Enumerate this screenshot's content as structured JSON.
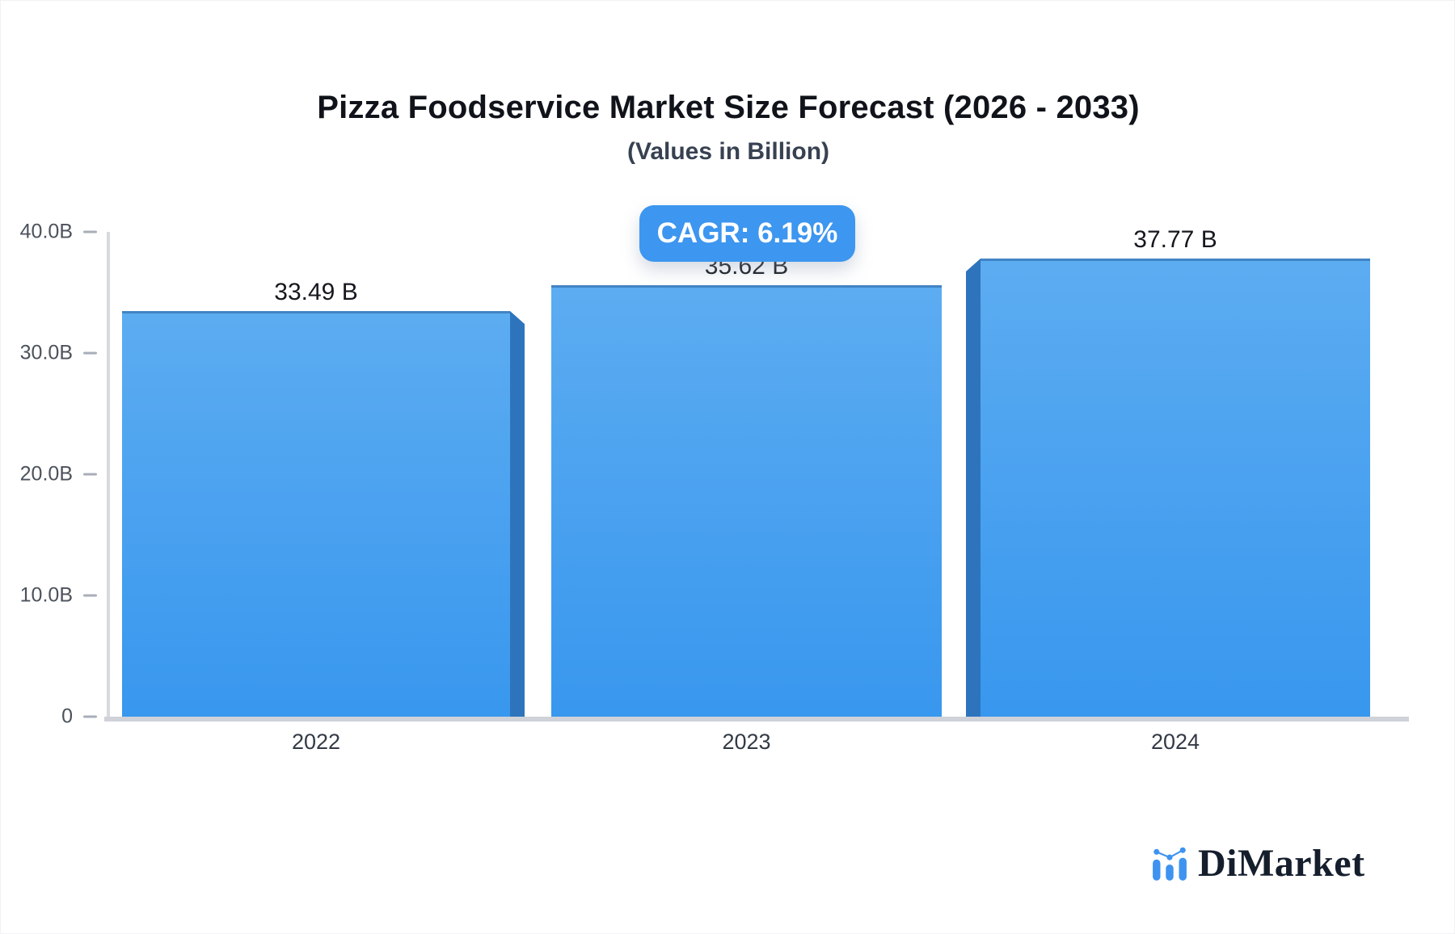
{
  "header": {
    "title": "Pizza Foodservice Market Size Forecast (2026 - 2033)",
    "subtitle": "(Values in Billion)",
    "cagr_label": "CAGR: 6.19%"
  },
  "chart_data": {
    "type": "bar",
    "title": "Pizza Foodservice Market Size Forecast (2026 - 2033)",
    "subtitle": "(Values in Billion)",
    "unit": "Billion",
    "categories": [
      "2022",
      "2023",
      "2024"
    ],
    "values": [
      33.49,
      35.62,
      37.77
    ],
    "bar_value_labels": [
      "33.49 B",
      "35.62 B",
      "37.77 B"
    ],
    "cagr_text": "CAGR: 6.19%",
    "cagr_percent": 6.19,
    "ylim": [
      0,
      40
    ],
    "y_ticks": [
      {
        "value": 40,
        "label": "40.0B"
      },
      {
        "value": 30,
        "label": "30.0B"
      },
      {
        "value": 20,
        "label": "20.0B"
      },
      {
        "value": 10,
        "label": "10.0B"
      },
      {
        "value": 0,
        "label": "0"
      }
    ],
    "xlabel": "",
    "ylabel": "",
    "grid": false,
    "legend": false,
    "colors": {
      "accent": "#3D96EF",
      "bar_face_top": "#5CACF1",
      "bar_face_bottom": "#3897EE",
      "bar_side": "#2E74BC",
      "bar_top_edge": "#4184C4"
    }
  },
  "branding": {
    "logo_text": "DiMarket",
    "logo_icon": "bar-chart-trend-icon",
    "logo_icon_color": "#3E93F0"
  }
}
